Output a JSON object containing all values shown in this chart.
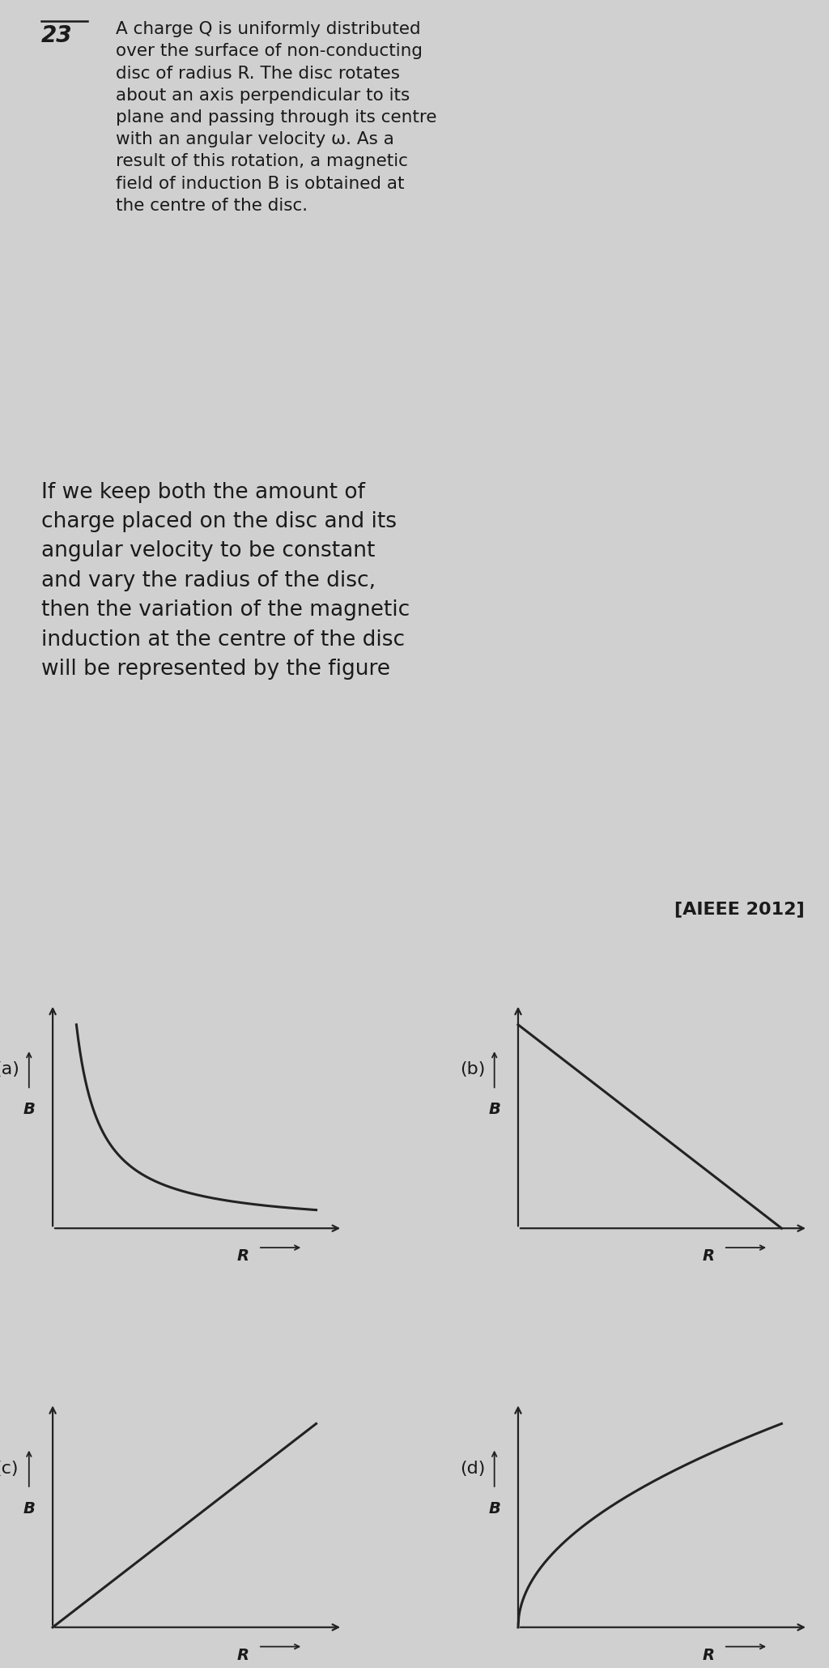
{
  "bg_color": "#d0d0d0",
  "text_color": "#1a1a1a",
  "question_number": "23",
  "para1_line1": "A charge Q is uniformly distributed",
  "para1_line2": "over the surface of non-conducting",
  "para1_line3": "disc of radius R. The disc rotates",
  "para1_line4": "about an axis perpendicular to its",
  "para1_line5": "plane and passing through its centre",
  "para1_line6": "with an angular velocity ω. As a",
  "para1_line7": "result of this rotation, a magnetic",
  "para1_line8": "field of induction B is obtained at",
  "para1_line9": "the centre of the disc.",
  "para2_line1": "If we keep both the amount of",
  "para2_line2": "charge placed on the disc and its",
  "para2_line3": "angular velocity to be constant",
  "para2_line4": "and vary the radius of the disc,",
  "para2_line5": "then the variation of the magnetic",
  "para2_line6": "induction at the centre of the disc",
  "para2_line7": "will be represented by the figure",
  "ref": "[AIEEE 2012]",
  "graph_line_color": "#222222",
  "graph_axes_color": "#222222",
  "figsize": [
    10.24,
    20.59
  ],
  "dpi": 100
}
